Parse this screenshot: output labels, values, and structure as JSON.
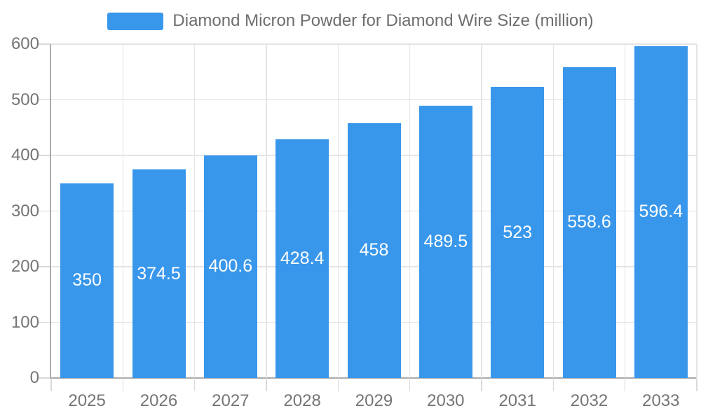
{
  "legend": {
    "label": "Diamond Micron Powder for Diamond Wire Size (million)"
  },
  "colors": {
    "bar": "#3997eb",
    "grid": "#e4e4e4",
    "tick": "#d9d9d9",
    "axis": "#ababab",
    "axis_text": "#757575",
    "legend_text": "#6e6e6e",
    "value_text": "#ffffff",
    "background": "#ffffff"
  },
  "chart_data": {
    "type": "bar",
    "title": "Diamond Micron Powder for Diamond Wire Size (million)",
    "series_name": "Diamond Micron Powder for Diamond Wire Size (million)",
    "categories": [
      "2025",
      "2026",
      "2027",
      "2028",
      "2029",
      "2030",
      "2031",
      "2032",
      "2033"
    ],
    "values": [
      350,
      374.5,
      400.6,
      428.4,
      458,
      489.5,
      523,
      558.6,
      596.4
    ],
    "value_labels": [
      "350",
      "374.5",
      "400.6",
      "428.4",
      "458",
      "489.5",
      "523",
      "558.6",
      "596.4"
    ],
    "xlabel": "",
    "ylabel": "",
    "ylim": [
      0,
      600
    ],
    "y_ticks": [
      0,
      100,
      200,
      300,
      400,
      500,
      600
    ],
    "grid": true,
    "legend_position": "top",
    "value_label_position": "inside-center"
  }
}
